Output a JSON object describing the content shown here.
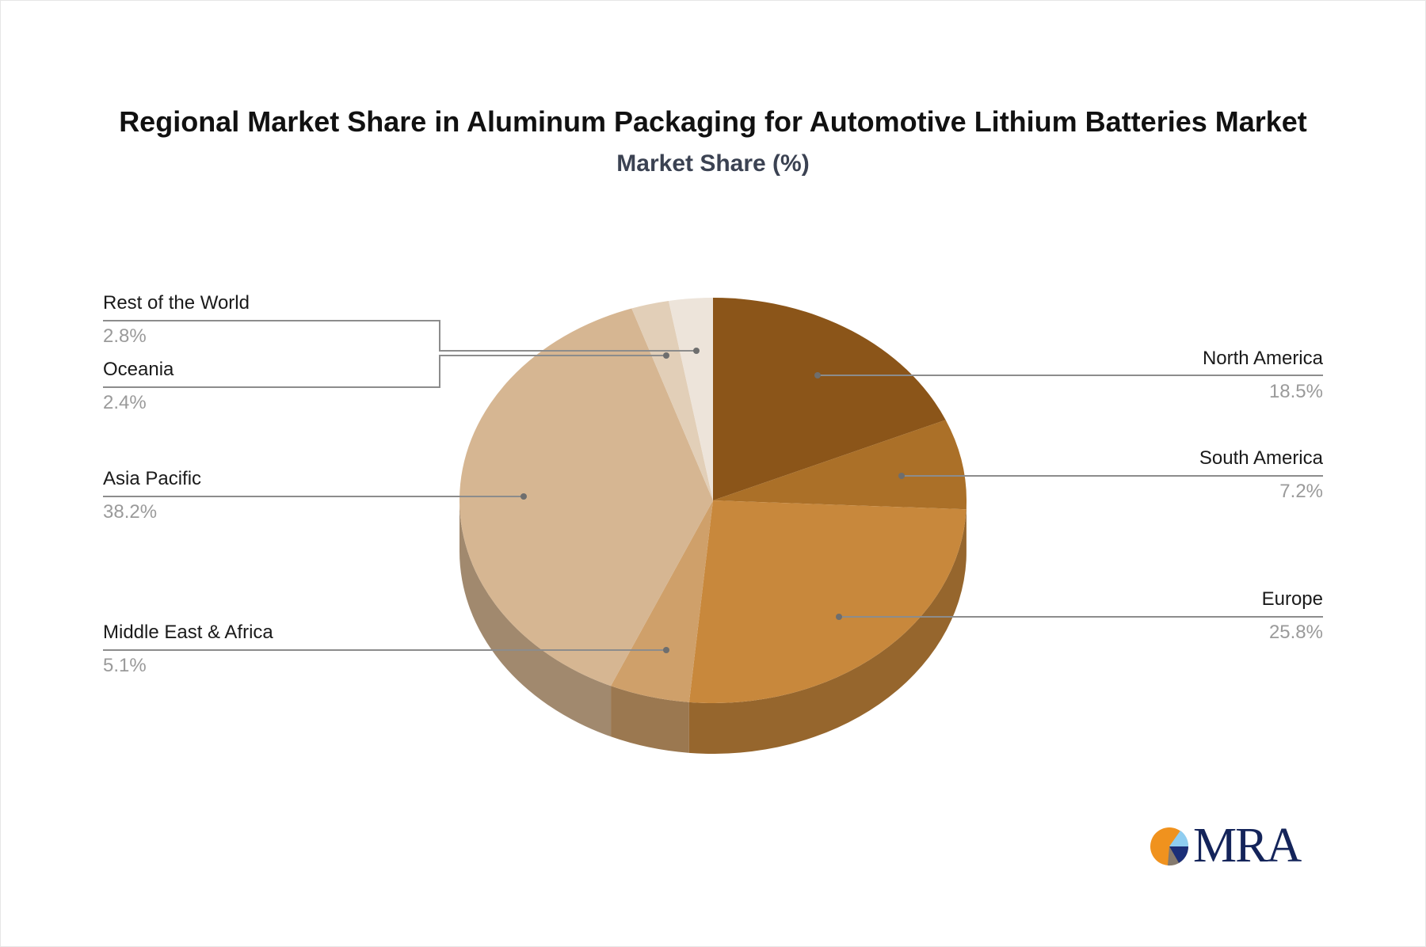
{
  "header": {
    "title": "Regional Market Share in Aluminum Packaging for Automotive Lithium Batteries Market",
    "subtitle": "Market Share (%)"
  },
  "labels": {
    "north_america": {
      "name": "North America",
      "value": "18.5%"
    },
    "south_america": {
      "name": "South America",
      "value": "7.2%"
    },
    "europe": {
      "name": "Europe",
      "value": "25.8%"
    },
    "middle_east_africa": {
      "name": "Middle East & Africa",
      "value": "5.1%"
    },
    "asia_pacific": {
      "name": "Asia Pacific",
      "value": "38.2%"
    },
    "oceania": {
      "name": "Oceania",
      "value": "2.4%"
    },
    "rest_of_world": {
      "name": "Rest of the World",
      "value": "2.8%"
    }
  },
  "logo": {
    "text": "MRA"
  },
  "colors": {
    "north_america": "#8b5519",
    "south_america": "#ab7028",
    "europe": "#c8883c",
    "middle_east_africa": "#cfa06a",
    "asia_pacific": "#d6b692",
    "oceania": "#e2cfb8",
    "rest_of_world": "#ede4da",
    "leader_line": "#8c8c8c"
  },
  "chart_data": {
    "type": "pie",
    "style": "3d",
    "title": "Regional Market Share in Aluminum Packaging for Automotive Lithium Batteries Market",
    "subtitle": "Market Share (%)",
    "categories": [
      "North America",
      "South America",
      "Europe",
      "Middle East & Africa",
      "Asia Pacific",
      "Oceania",
      "Rest of the World"
    ],
    "values": [
      18.5,
      7.2,
      25.8,
      5.1,
      38.2,
      2.4,
      2.8
    ],
    "unit": "%",
    "start_angle": "12 o'clock, clockwise",
    "legend": "none (leader-line labels)"
  }
}
